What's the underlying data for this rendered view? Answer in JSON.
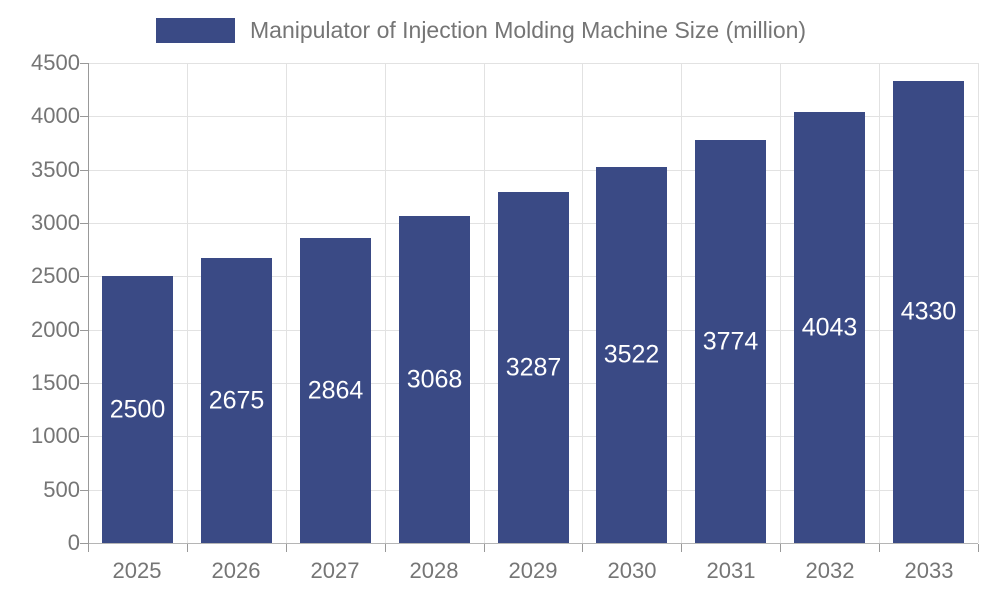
{
  "chart_data": {
    "type": "bar",
    "title": "Manipulator of Injection Molding Machine Size (million)",
    "series_name": "Manipulator of Injection Molding Machine Size (million)",
    "categories": [
      "2025",
      "2026",
      "2027",
      "2028",
      "2029",
      "2030",
      "2031",
      "2032",
      "2033"
    ],
    "values": [
      2500,
      2675,
      2864,
      3068,
      3287,
      3522,
      3774,
      4043,
      4330
    ],
    "xlabel": "",
    "ylabel": "",
    "ylim": [
      0,
      4500
    ],
    "ytick_step": 500,
    "grid": true,
    "legend_position": "top",
    "bar_labels_visible": true,
    "bar_label_position": "center",
    "colors": {
      "bar": "#3a4a85",
      "bar_label": "#ffffff",
      "grid_line": "#e2e2e2",
      "axis_line": "#999999",
      "tick_label": "#757575",
      "title_text": "#757575",
      "background": "#ffffff"
    }
  }
}
